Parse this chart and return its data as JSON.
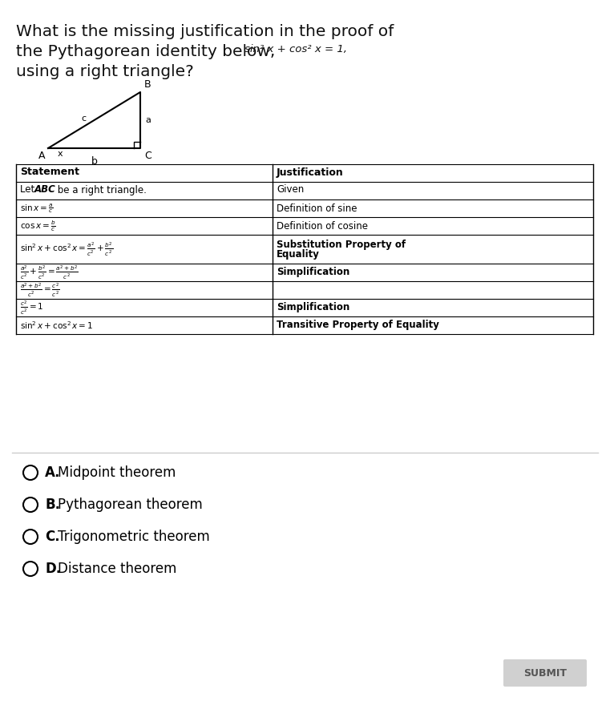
{
  "title_line1": "What is the missing justification in the proof of",
  "title_line2": "the Pythagorean identity below,",
  "title_inline_math": "sin² x + cos² x = 1,",
  "title_line3": "using a right triangle?",
  "bg_color": "#ffffff",
  "table_header": [
    "Statement",
    "Justification"
  ],
  "table_rows": [
    [
      "Let ABC be a right triangle.",
      "Given"
    ],
    [
      "sin x = a/c",
      "Definition of sine"
    ],
    [
      "cos x = b/c",
      "Definition of cosine"
    ],
    [
      "sin²x + cos²x = a²/c² + b²/c²",
      "Substitution Property of\nEquality"
    ],
    [
      "a²/c² + b²/c² = (a²+b²)/c²",
      "Simplification"
    ],
    [
      "(a²+b²)/c² = c²/c²",
      ""
    ],
    [
      "c²/c² = 1",
      "Simplification"
    ],
    [
      "sin²x + cos²x = 1",
      "Transitive Property of Equality"
    ]
  ],
  "options": [
    [
      "A.",
      "Midpoint theorem"
    ],
    [
      "B.",
      "Pythagorean theorem"
    ],
    [
      "C.",
      "Trigonometric theorem"
    ],
    [
      "D.",
      "Distance theorem"
    ]
  ],
  "submit_label": "SUBMIT"
}
